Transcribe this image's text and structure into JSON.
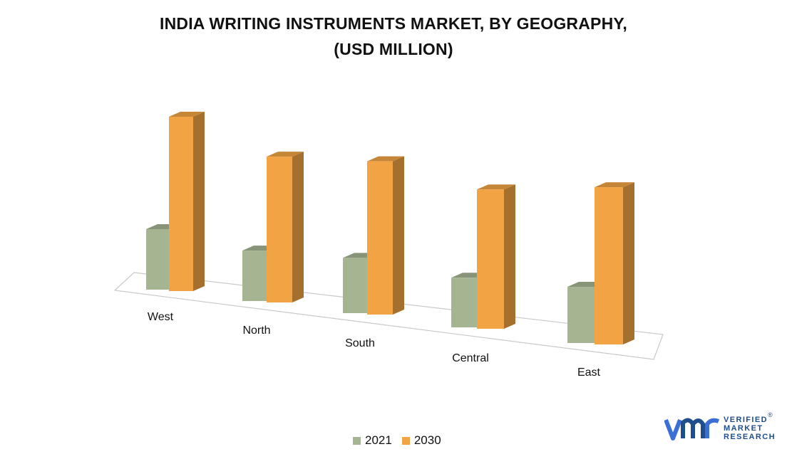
{
  "chart_data": {
    "type": "bar",
    "title": "INDIA WRITING INSTRUMENTS MARKET, BY GEOGRAPHY,",
    "subtitle": "(USD MILLION)",
    "categories": [
      "West",
      "North",
      "South",
      "Central",
      "East"
    ],
    "series": [
      {
        "name": "2021",
        "values": [
          85,
          72,
          80,
          73,
          84
        ],
        "color": "#a5b592"
      },
      {
        "name": "2030",
        "values": [
          245,
          208,
          222,
          205,
          235
        ],
        "color": "#f2a444"
      }
    ],
    "ylim": [
      0,
      260
    ],
    "grid": false,
    "legend": "bottom-center",
    "style": "3d-clustered-column"
  },
  "brand": {
    "logo_text": "vmr",
    "lines": [
      "VERIFIED",
      "MARKET",
      "RESEARCH"
    ],
    "registered": "®",
    "color": "#1f4e8c",
    "accent": "#3b6fd6"
  }
}
